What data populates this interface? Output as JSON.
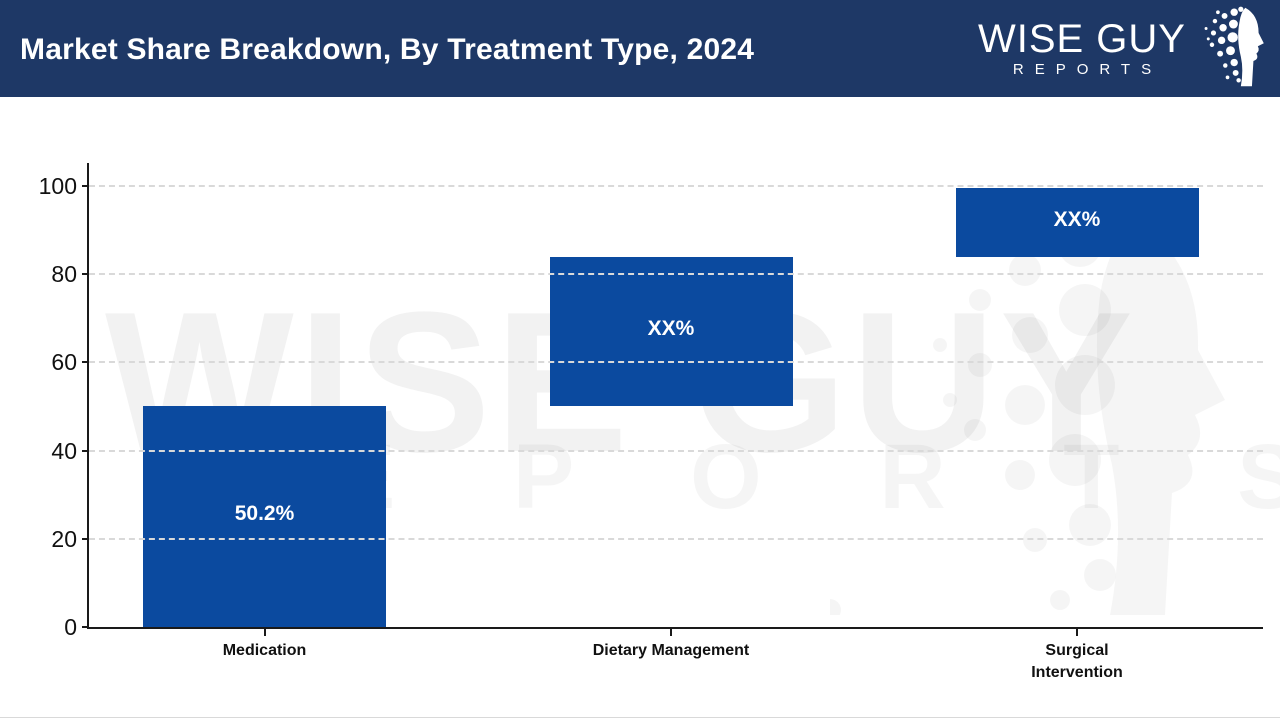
{
  "header": {
    "title": "Market Share Breakdown, By Treatment Type, 2024",
    "bg_color": "#1e3866",
    "logo": {
      "line1": "WISE GUY",
      "line2": "REPORTS"
    }
  },
  "watermark": {
    "line1": "WISE GUY",
    "line2": "R E P O R T S"
  },
  "chart_data": {
    "type": "bar",
    "subtype": "waterfall",
    "title": "Market Share Breakdown, By Treatment Type, 2024",
    "categories": [
      "Medication",
      "Dietary Management",
      "Surgical Intervention"
    ],
    "segments": [
      {
        "category": "Medication",
        "start": 0,
        "end": 50.2,
        "label": "50.2%",
        "wrap": false
      },
      {
        "category": "Dietary Management",
        "start": 50.2,
        "end": 84,
        "label": "XX%",
        "wrap": false
      },
      {
        "category": "Surgical Intervention",
        "start": 84,
        "end": 99.5,
        "label": "XX%",
        "wrap": true
      }
    ],
    "xlabel": "",
    "ylabel": "",
    "ylim": [
      0,
      100
    ],
    "yticks": [
      0,
      20,
      40,
      60,
      80,
      100
    ],
    "grid": {
      "axis": "y",
      "style": "dashed",
      "color": "#d9d9d9"
    },
    "legend": "none",
    "bar_color": "#0b4a9f",
    "bar_label_color": "#ffffff",
    "axis_color": "#1a1a1a"
  }
}
